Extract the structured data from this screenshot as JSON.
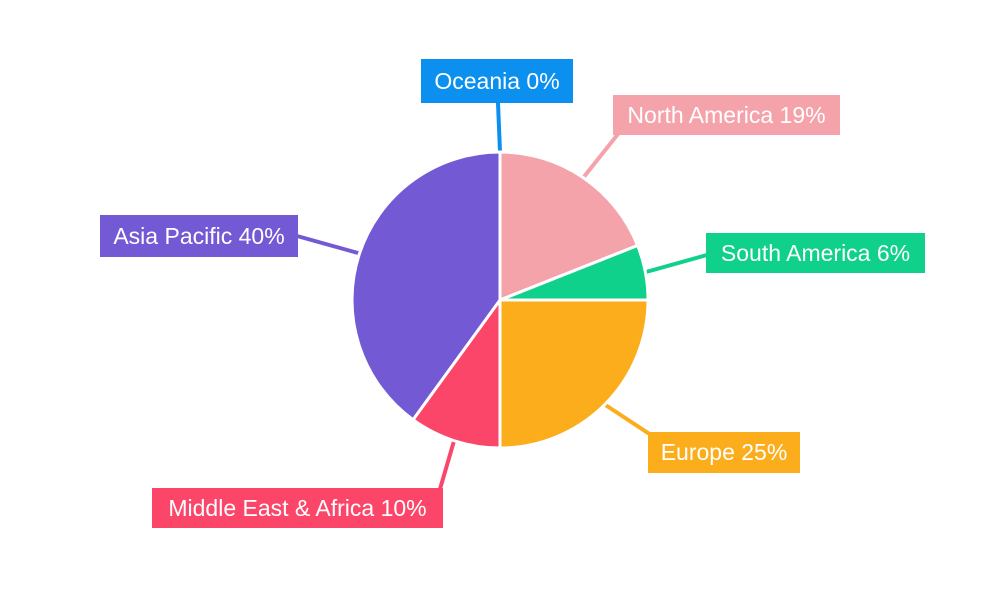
{
  "chart_data": {
    "type": "pie",
    "categories": [
      "Oceania",
      "North America",
      "South America",
      "Europe",
      "Middle East & Africa",
      "Asia Pacific"
    ],
    "values": [
      0,
      19,
      6,
      25,
      10,
      40
    ],
    "unit": "%",
    "direction": "clockwise",
    "start_angle": "12-o-clock",
    "legend_position": "external-callout-labels",
    "background_color": "#ffffff",
    "label_text_color": "#ffffff",
    "slices": [
      {
        "label": "Oceania",
        "value": 0,
        "display": "Oceania 0%",
        "color": "#0b90f0"
      },
      {
        "label": "North America",
        "value": 19,
        "display": "North America 19%",
        "color": "#f5a3ab"
      },
      {
        "label": "South America",
        "value": 6,
        "display": "South America 6%",
        "color": "#0fd18b"
      },
      {
        "label": "Europe",
        "value": 25,
        "display": "Europe 25%",
        "color": "#fbad1b"
      },
      {
        "label": "Middle East & Africa",
        "value": 10,
        "display": "Middle East & Africa 10%",
        "color": "#fb4569"
      },
      {
        "label": "Asia Pacific",
        "value": 40,
        "display": "Asia Pacific 40%",
        "color": "#7459d4"
      }
    ]
  }
}
